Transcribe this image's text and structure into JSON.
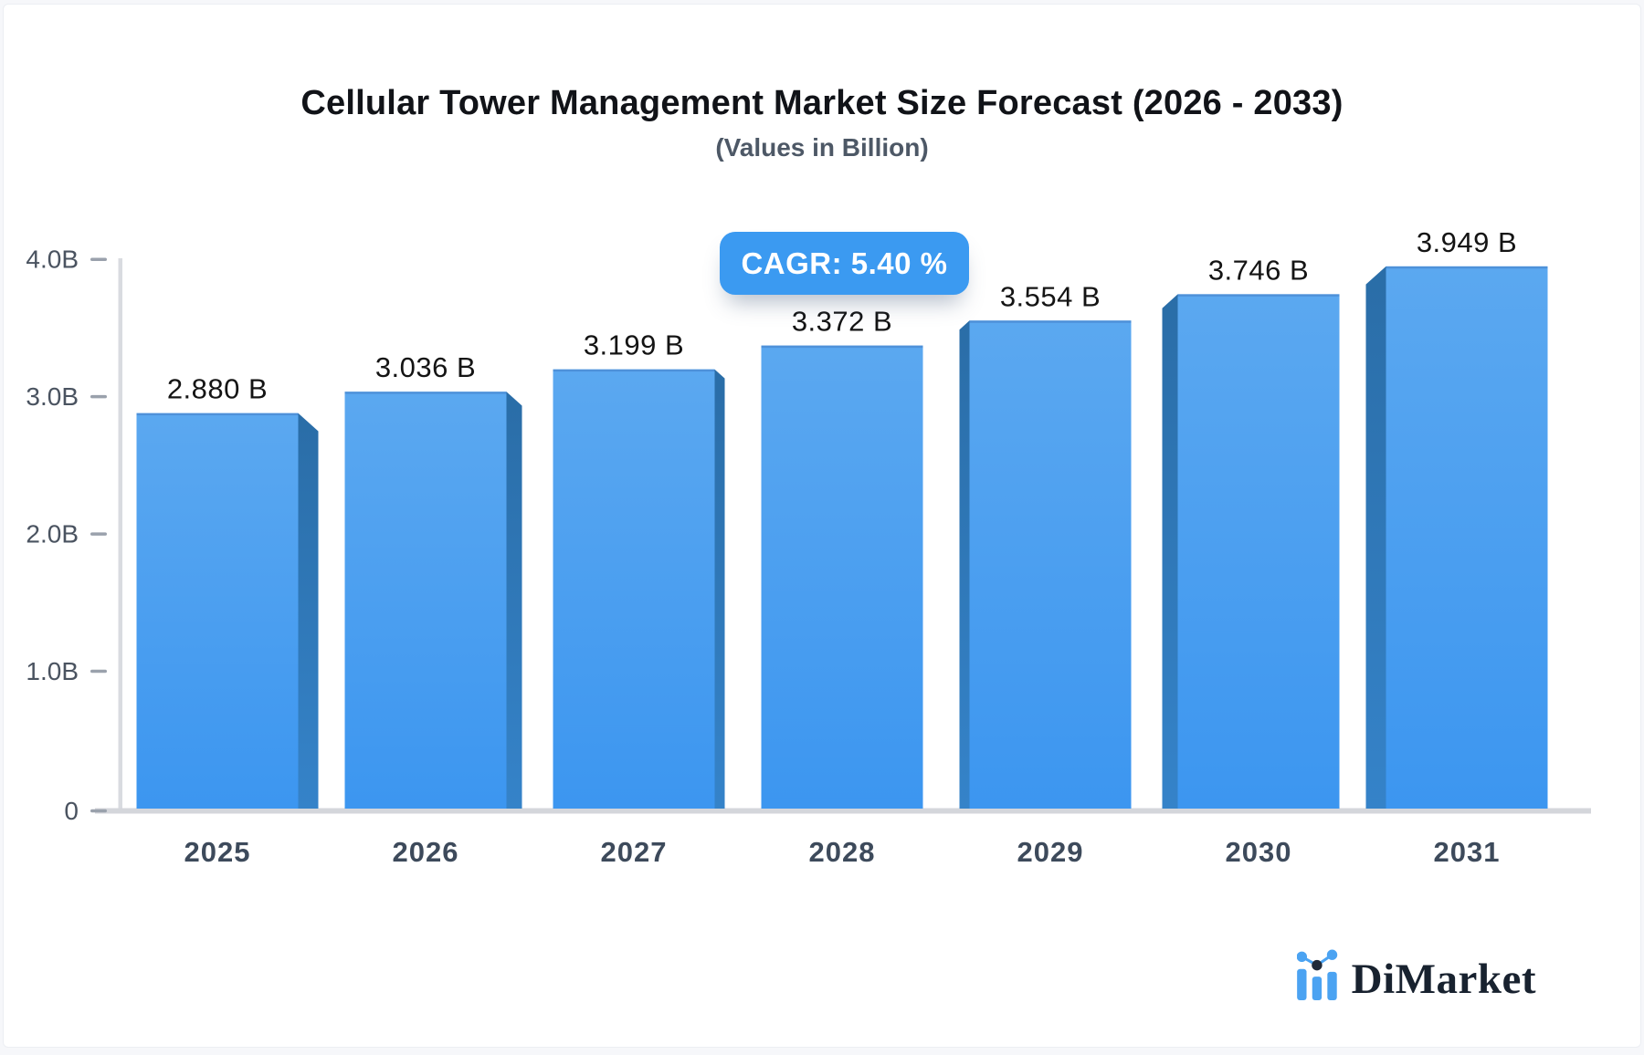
{
  "header": {
    "title": "Cellular Tower Management Market Size Forecast (2026 - 2033)",
    "subtitle": "(Values in Billion)"
  },
  "badge": {
    "label": "CAGR: 5.40 %"
  },
  "chart_data": {
    "type": "bar",
    "title": "Cellular Tower Management Market Size Forecast (2026 - 2033)",
    "subtitle": "(Values in Billion)",
    "cagr_text": "CAGR: 5.40 %",
    "categories": [
      "2025",
      "2026",
      "2027",
      "2028",
      "2029",
      "2030",
      "2031"
    ],
    "values": [
      2.88,
      3.036,
      3.199,
      3.372,
      3.554,
      3.746,
      3.949
    ],
    "value_labels": [
      "2.880 B",
      "3.036 B",
      "3.199 B",
      "3.372 B",
      "3.554 B",
      "3.746 B",
      "3.949 B"
    ],
    "y_ticks": [
      {
        "value": 0,
        "label": "0"
      },
      {
        "value": 1.0,
        "label": "1.0B"
      },
      {
        "value": 2.0,
        "label": "2.0B"
      },
      {
        "value": 3.0,
        "label": "3.0B"
      },
      {
        "value": 4.0,
        "label": "4.0B"
      }
    ],
    "ylim": [
      0,
      4.0
    ],
    "xlabel": "",
    "ylabel": "",
    "grid": false,
    "legend": false,
    "colors": {
      "bar_face_top": "#5ba8f0",
      "bar_face_bottom": "#3c96f0",
      "bar_top_edge": "#4e91d9",
      "bar_side_top": "#2a6da7",
      "bar_side_bottom": "#3583c9",
      "axis_line": "#d9dbe0",
      "baseline": "#d4d6db",
      "tick_mark": "#9aa1ac",
      "tick_label": "#4a5360",
      "category_label": "#3d4a5b",
      "value_label": "#141414",
      "badge_bg": "#3b9af1",
      "badge_text": "#ffffff"
    }
  },
  "logo": {
    "text": "DiMarket",
    "icon": "mini-bar-chart-icon"
  }
}
